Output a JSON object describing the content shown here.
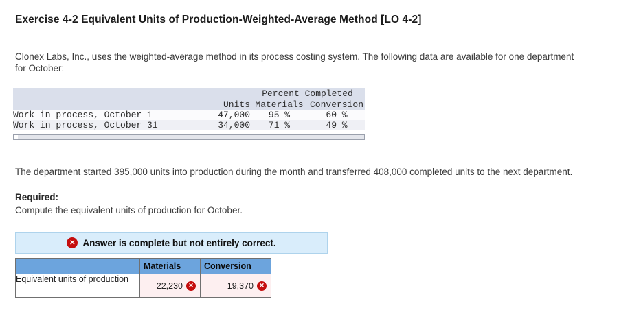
{
  "page": {
    "title": "Exercise 4-2 Equivalent Units of Production-Weighted-Average Method [LO 4-2]",
    "intro": "Clonex Labs, Inc., uses the weighted-average method in its process costing system. The following data are available for one department for October:",
    "narrative": "The department started 395,000 units into production during the month and transferred 408,000 completed units to the next department.",
    "required_label": "Required:",
    "required_task": "Compute the equivalent units of production for October."
  },
  "wip_table": {
    "group_header": "Percent Completed",
    "columns": {
      "units": "Units",
      "materials": "Materials",
      "conversion": "Conversion"
    },
    "rows": [
      {
        "label": "Work in process, October 1",
        "units": "47,000",
        "materials": "95 %",
        "conversion": "60 %"
      },
      {
        "label": "Work in process, October 31",
        "units": "34,000",
        "materials": "71 %",
        "conversion": "49 %"
      }
    ]
  },
  "feedback": {
    "message": "Answer is complete but not entirely correct.",
    "icon": "error-x-icon",
    "icon_glyph": "✕"
  },
  "answer_table": {
    "columns": {
      "materials": "Materials",
      "conversion": "Conversion"
    },
    "row": {
      "label": "Equivalent units of production",
      "materials_value": "22,230",
      "materials_status": "incorrect",
      "conversion_value": "19,370",
      "conversion_status": "incorrect"
    }
  },
  "colors": {
    "answer_header_blue": "#6ca4dd",
    "error_red": "#c50e0e",
    "incorrect_cell_pink": "#fdeff0",
    "feedback_bg_blue": "#d9edfb",
    "wip_header_band": "#dadfeb",
    "wip_alt_row": "#eff0f5"
  }
}
